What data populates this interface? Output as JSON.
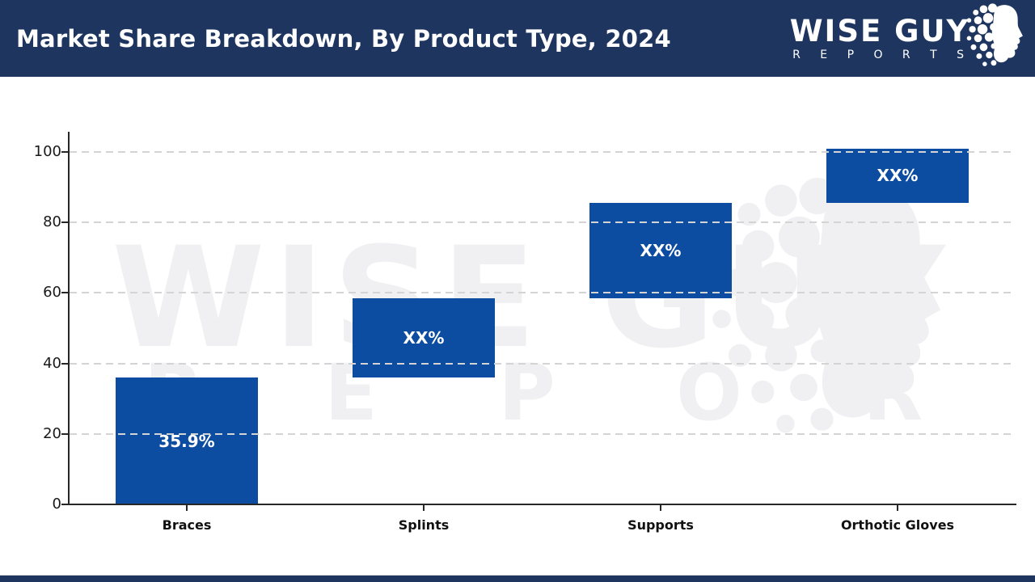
{
  "header": {
    "title": "Market Share Breakdown, By Product Type, 2024",
    "bg_color": "#1e3560",
    "logo": {
      "line1": "WISE GUY",
      "line2": "R E P O R T S"
    }
  },
  "watermark": {
    "line1": "WISE GUY",
    "line2": "R E P O R T S"
  },
  "chart_data": {
    "type": "bar",
    "subtype": "waterfall",
    "title": "Market Share Breakdown, By Product Type, 2024",
    "xlabel": "",
    "ylabel": "",
    "categories": [
      "Braces",
      "Splints",
      "Supports",
      "Orthotic Gloves"
    ],
    "segments": [
      {
        "category": "Braces",
        "start": 0,
        "end": 35.9,
        "label": "35.9%"
      },
      {
        "category": "Splints",
        "start": 35.9,
        "end": 58.5,
        "label": "XX%"
      },
      {
        "category": "Supports",
        "start": 58.5,
        "end": 85.6,
        "label": "XX%"
      },
      {
        "category": "Orthotic Gloves",
        "start": 85.6,
        "end": 100.9,
        "label": "XX%"
      }
    ],
    "ylim": [
      0,
      100
    ],
    "yticks": [
      0,
      20,
      40,
      60,
      80,
      100
    ],
    "grid": true,
    "gridline_style": "dashed",
    "legend": "none",
    "bar_color": "#0d4da1",
    "bar_label_color": "#ffffff",
    "axis_color": "#262626",
    "gridline_color": "#d4d4d4"
  },
  "footer": {
    "bg_color": "#1e3560"
  }
}
